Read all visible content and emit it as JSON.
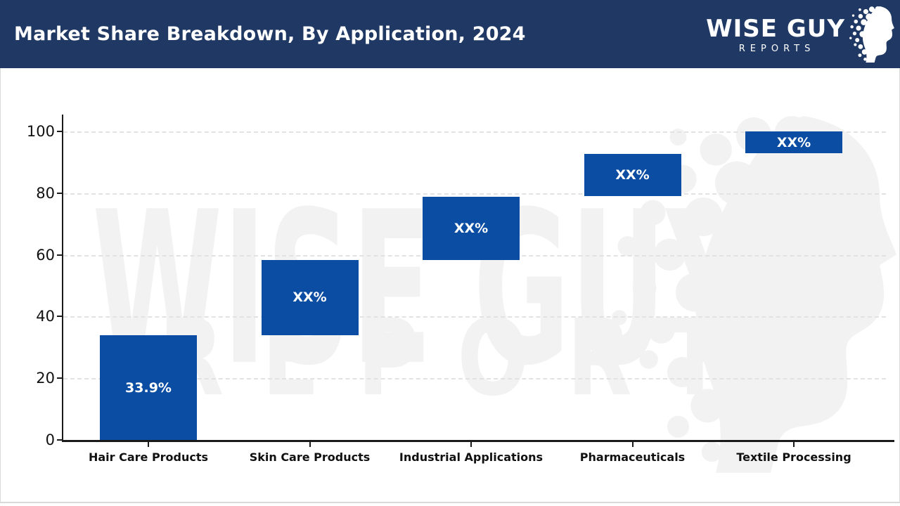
{
  "header": {
    "title": "Market Share Breakdown, By Application, 2024",
    "logo": {
      "brand": "WISE GUY",
      "sub": "REPORTS"
    }
  },
  "watermark": {
    "brand": "WISE GUY",
    "sub": "REPORTS"
  },
  "chart_data": {
    "type": "bar",
    "subtype": "waterfall",
    "title": "Market Share Breakdown, By Application, 2024",
    "xlabel": "",
    "ylabel": "",
    "ylim": [
      0,
      105
    ],
    "yticks": [
      0,
      20,
      40,
      60,
      80,
      100
    ],
    "grid": "horizontal-dashed",
    "legend": "none",
    "bar_color": "#0b4da2",
    "categories": [
      "Hair Care Products",
      "Skin Care Products",
      "Industrial Applications",
      "Pharmaceuticals",
      "Textile Processing"
    ],
    "segments": [
      {
        "category": "Hair Care Products",
        "start": 0,
        "end": 33.9,
        "label": "33.9%"
      },
      {
        "category": "Skin Care Products",
        "start": 34.0,
        "end": 58.3,
        "label": "XX%"
      },
      {
        "category": "Industrial Applications",
        "start": 58.3,
        "end": 78.8,
        "label": "XX%"
      },
      {
        "category": "Pharmaceuticals",
        "start": 79.0,
        "end": 92.7,
        "label": "XX%"
      },
      {
        "category": "Textile Processing",
        "start": 92.9,
        "end": 100.0,
        "label": "XX%"
      }
    ]
  }
}
